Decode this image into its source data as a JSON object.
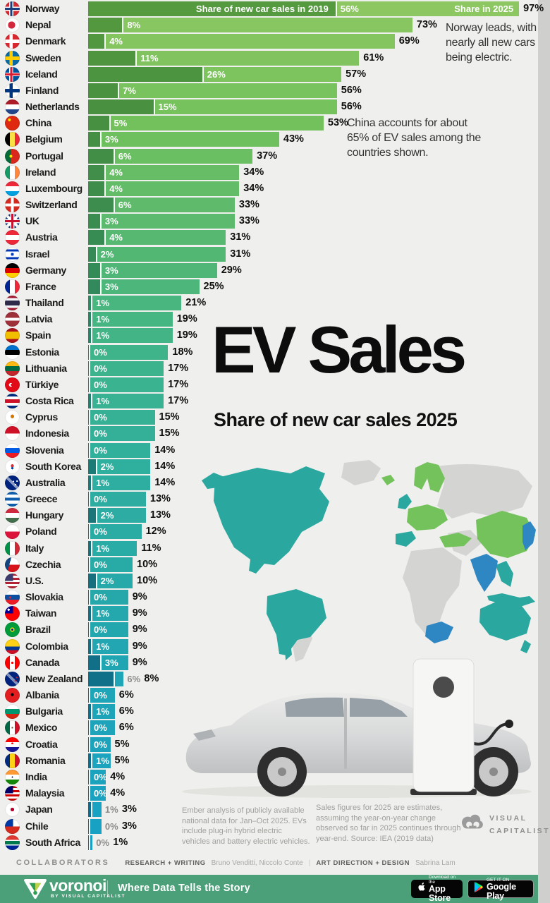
{
  "colors": {
    "background": "#efefed",
    "bar_top_light": "#8cc762",
    "bar_top_dark": "#559a3f",
    "bar_bottom_light": "#18a1c4",
    "bar_bottom_dark": "#0c6c92",
    "footer_green": "#4b9f79",
    "value_2025_text": "#0e0e0e",
    "value_2019_text": "#ffffff",
    "muted_value_text": "#8b8b8b",
    "map_gray": "#d4d4d2",
    "map_teal": "#2aa79f",
    "map_green": "#74c25c",
    "map_blue": "#2e86c3"
  },
  "header_labels": {
    "s2019": "Share of new car sales in 2019",
    "s2025": "Share in 2025"
  },
  "annotations": {
    "norway": "Norway leads, with nearly all new cars being electric.",
    "china": "China accounts for about 65% of EV sales among the countries shown."
  },
  "title_block": {
    "title": "EV Sales",
    "subtitle": "Share of new car sales 2025"
  },
  "chart_data": {
    "type": "bar",
    "orientation": "horizontal",
    "unit": "percent",
    "title": "EV Sales",
    "subtitle": "Share of new car sales 2025",
    "series": [
      {
        "name": "Share of new car sales in 2019"
      },
      {
        "name": "Share in 2025"
      }
    ],
    "countries": [
      {
        "name": "Norway",
        "share_2019": 56,
        "share_2025": 97
      },
      {
        "name": "Nepal",
        "share_2019": 8,
        "share_2025": 73
      },
      {
        "name": "Denmark",
        "share_2019": 4,
        "share_2025": 69
      },
      {
        "name": "Sweden",
        "share_2019": 11,
        "share_2025": 61
      },
      {
        "name": "Iceland",
        "share_2019": 26,
        "share_2025": 57
      },
      {
        "name": "Finland",
        "share_2019": 7,
        "share_2025": 56
      },
      {
        "name": "Netherlands",
        "share_2019": 15,
        "share_2025": 56
      },
      {
        "name": "China",
        "share_2019": 5,
        "share_2025": 53
      },
      {
        "name": "Belgium",
        "share_2019": 3,
        "share_2025": 43
      },
      {
        "name": "Portugal",
        "share_2019": 6,
        "share_2025": 37
      },
      {
        "name": "Ireland",
        "share_2019": 4,
        "share_2025": 34
      },
      {
        "name": "Luxembourg",
        "share_2019": 4,
        "share_2025": 34
      },
      {
        "name": "Switzerland",
        "share_2019": 6,
        "share_2025": 33
      },
      {
        "name": "UK",
        "share_2019": 3,
        "share_2025": 33
      },
      {
        "name": "Austria",
        "share_2019": 4,
        "share_2025": 31
      },
      {
        "name": "Israel",
        "share_2019": 2,
        "share_2025": 31
      },
      {
        "name": "Germany",
        "share_2019": 3,
        "share_2025": 29
      },
      {
        "name": "France",
        "share_2019": 3,
        "share_2025": 25
      },
      {
        "name": "Thailand",
        "share_2019": 1,
        "share_2025": 21
      },
      {
        "name": "Latvia",
        "share_2019": 1,
        "share_2025": 19
      },
      {
        "name": "Spain",
        "share_2019": 1,
        "share_2025": 19
      },
      {
        "name": "Estonia",
        "share_2019": 0,
        "share_2025": 18
      },
      {
        "name": "Lithuania",
        "share_2019": 0,
        "share_2025": 17
      },
      {
        "name": "Türkiye",
        "share_2019": 0,
        "share_2025": 17
      },
      {
        "name": "Costa Rica",
        "share_2019": 1,
        "share_2025": 17
      },
      {
        "name": "Cyprus",
        "share_2019": 0,
        "share_2025": 15
      },
      {
        "name": "Indonesia",
        "share_2019": 0,
        "share_2025": 15
      },
      {
        "name": "Slovenia",
        "share_2019": 0,
        "share_2025": 14
      },
      {
        "name": "South Korea",
        "share_2019": 2,
        "share_2025": 14
      },
      {
        "name": "Australia",
        "share_2019": 1,
        "share_2025": 14
      },
      {
        "name": "Greece",
        "share_2019": 0,
        "share_2025": 13
      },
      {
        "name": "Hungary",
        "share_2019": 2,
        "share_2025": 13
      },
      {
        "name": "Poland",
        "share_2019": 0,
        "share_2025": 12
      },
      {
        "name": "Italy",
        "share_2019": 1,
        "share_2025": 11
      },
      {
        "name": "Czechia",
        "share_2019": 0,
        "share_2025": 10
      },
      {
        "name": "U.S.",
        "share_2019": 2,
        "share_2025": 10
      },
      {
        "name": "Slovakia",
        "share_2019": 0,
        "share_2025": 9
      },
      {
        "name": "Taiwan",
        "share_2019": 1,
        "share_2025": 9
      },
      {
        "name": "Brazil",
        "share_2019": 0,
        "share_2025": 9
      },
      {
        "name": "Colombia",
        "share_2019": 1,
        "share_2025": 9
      },
      {
        "name": "Canada",
        "share_2019": 3,
        "share_2025": 9
      },
      {
        "name": "New Zealand",
        "share_2019": 6,
        "share_2025": 8
      },
      {
        "name": "Albania",
        "share_2019": 0,
        "share_2025": 6
      },
      {
        "name": "Bulgaria",
        "share_2019": 1,
        "share_2025": 6
      },
      {
        "name": "Mexico",
        "share_2019": 0,
        "share_2025": 6
      },
      {
        "name": "Croatia",
        "share_2019": 0,
        "share_2025": 5
      },
      {
        "name": "Romania",
        "share_2019": 1,
        "share_2025": 5
      },
      {
        "name": "India",
        "share_2019": 0,
        "share_2025": 4
      },
      {
        "name": "Malaysia",
        "share_2019": 0,
        "share_2025": 4
      },
      {
        "name": "Japan",
        "share_2019": 1,
        "share_2025": 3
      },
      {
        "name": "Chile",
        "share_2019": 0,
        "share_2025": 3
      },
      {
        "name": "South Africa",
        "share_2019": 0,
        "share_2025": 1
      }
    ]
  },
  "footnotes": {
    "left": "Ember analysis of publicly available national data for Jan–Oct 2025. EVs include plug-in hybrid electric vehicles and battery electric vehicles.",
    "right": "Sales figures for 2025 are estimates, assuming the year-on-year change observed so far in 2025 continues through year-end. Source: IEA (2019 data)"
  },
  "vc_logo": {
    "line1": "VISUAL",
    "line2": "CAPITALIST"
  },
  "collaborators": {
    "label": "COLLABORATORS",
    "research_label": "RESEARCH + WRITING",
    "research_names": "Bruno Venditti, Niccolo Conte",
    "divider": "|",
    "art_label": "ART DIRECTION + DESIGN",
    "art_names": "Sabrina Lam"
  },
  "footer": {
    "brand": "voronoi",
    "brand_sub": "BY VISUAL CAPITALIST",
    "tagline": "Where Data Tells the Story",
    "appstore_small": "Download on the",
    "appstore_big": "App Store",
    "gplay_small": "GET IT ON",
    "gplay_big": "Google Play"
  }
}
